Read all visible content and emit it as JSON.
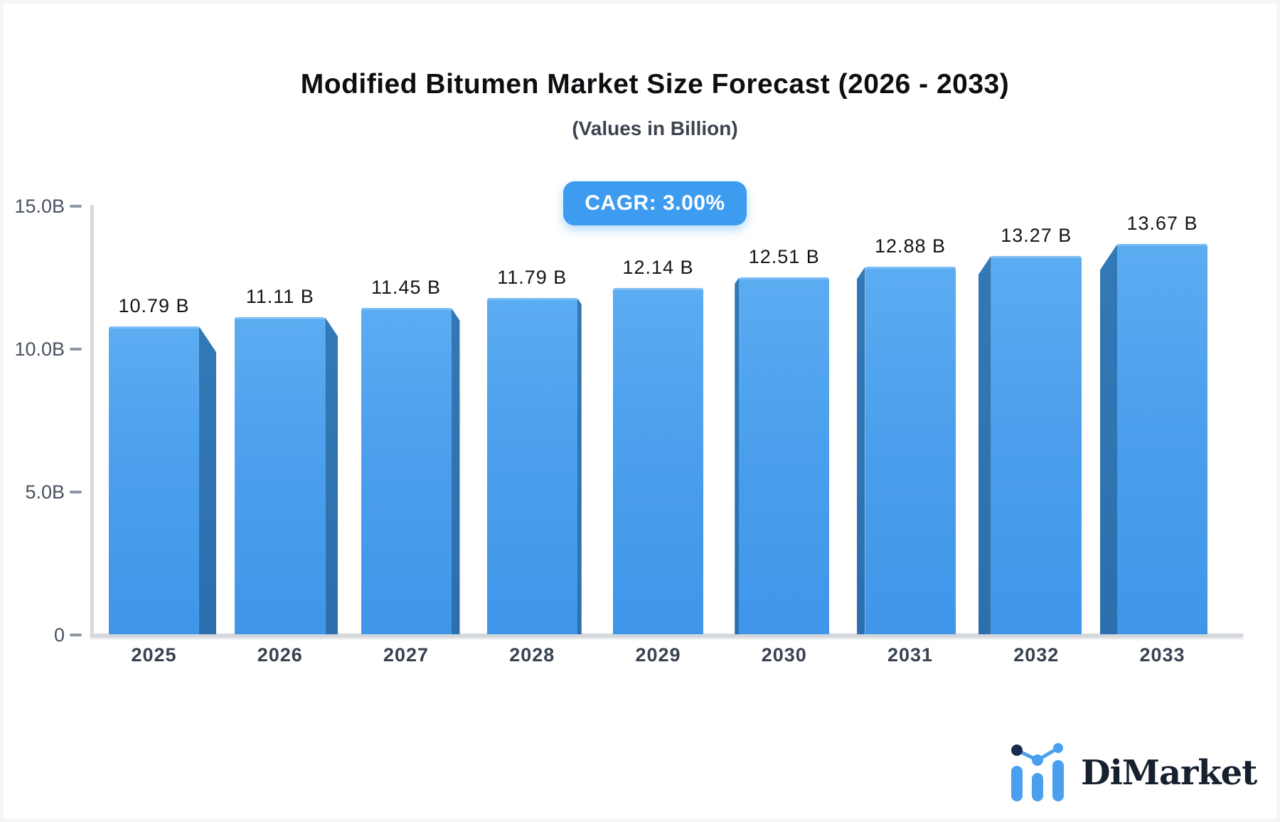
{
  "header": {
    "title": "Modified Bitumen Market Size Forecast (2026 - 2033)",
    "subtitle": "(Values in Billion)",
    "cagr_badge": "CAGR: 3.00%"
  },
  "chart_data": {
    "type": "bar",
    "title": "Modified Bitumen Market Size Forecast (2026 - 2033)",
    "subtitle": "(Values in Billion)",
    "annotation": "CAGR: 3.00%",
    "categories": [
      "2025",
      "2026",
      "2027",
      "2028",
      "2029",
      "2030",
      "2031",
      "2032",
      "2033"
    ],
    "values": [
      10.79,
      11.11,
      11.45,
      11.79,
      12.14,
      12.51,
      12.88,
      13.27,
      13.67
    ],
    "value_labels": [
      "10.79 B",
      "11.11 B",
      "11.45 B",
      "11.79 B",
      "12.14 B",
      "12.51 B",
      "12.88 B",
      "13.27 B",
      "13.67 B"
    ],
    "xlabel": "",
    "ylabel": "",
    "y_ticks": [
      "15.0B",
      "10.0B",
      "5.0B",
      "0"
    ],
    "y_tick_values": [
      15,
      10,
      5,
      0
    ],
    "ylim": [
      0,
      15
    ],
    "grid": false,
    "legend": false,
    "bar_style": "3d-perspective-center",
    "colors": {
      "bar_face_top": "#5bacf1",
      "bar_face_bottom": "#3f96e9",
      "bar_top_edge": "#7dbff6",
      "bar_side": "#2d6fae",
      "badge_background": "#3d9bf0",
      "badge_text": "#ffffff",
      "axis_line": "#d4d8dd",
      "tick_text": "#49525f",
      "category_text": "#39414f",
      "value_text": "#121418",
      "title_text": "#0c0e11"
    }
  },
  "branding": {
    "logo_text": "DiMarket",
    "logo_icon": "bar-line-chart-icon",
    "logo_text_color": "#16202f",
    "logo_icon_blue": "#4aa0ee",
    "logo_icon_navy": "#1b2a4a"
  }
}
